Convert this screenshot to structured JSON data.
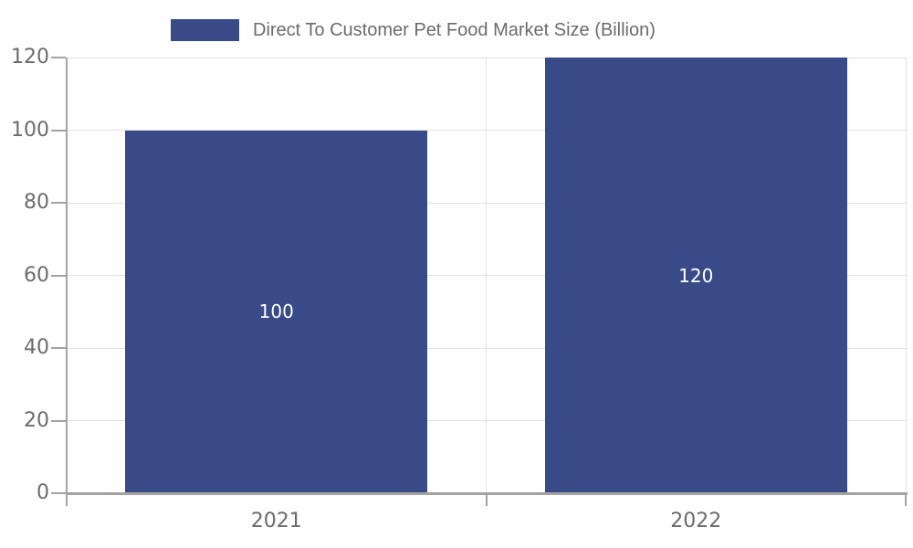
{
  "chart_data": {
    "type": "bar",
    "title": "Direct To Customer Pet Food Market Size (Billion)",
    "categories": [
      "2021",
      "2022"
    ],
    "values": [
      100,
      120
    ],
    "value_labels": [
      "100",
      "120"
    ],
    "xlabel": "",
    "ylabel": "",
    "ylim": [
      0,
      120
    ],
    "yticks": [
      0,
      20,
      40,
      60,
      80,
      100,
      120
    ],
    "grid": true,
    "legend_position": "top",
    "colors": {
      "bar": "#384a87",
      "grid": "#e2e2e2",
      "axis": "#a3a3a3",
      "tick_label": "#6b6b6b",
      "value_label": "#ffffff"
    }
  }
}
